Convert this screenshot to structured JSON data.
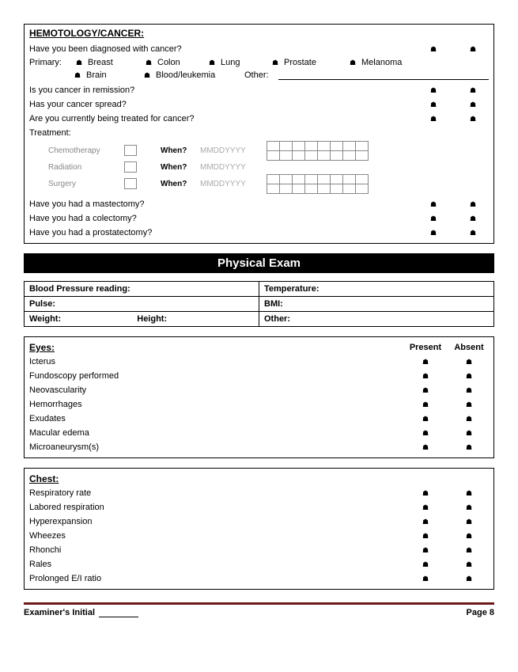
{
  "hemo": {
    "title": "HEMOTOLOGY/CANCER:",
    "q_diagnosed": "Have you been diagnosed with cancer?",
    "primary_label": "Primary:",
    "opts1": [
      "Breast",
      "Colon",
      "Lung",
      "Prostate",
      "Melanoma"
    ],
    "opts2": [
      "Brain",
      "Blood/leukemia"
    ],
    "other_label": "Other:",
    "q_remission": "Is you cancer in remission?",
    "q_spread": "Has your cancer spread?",
    "q_treated": "Are you currently being treated for cancer?",
    "treatment_label": "Treatment:",
    "treatments": [
      "Chemotherapy",
      "Radiation",
      "Surgery"
    ],
    "when_label": "When?",
    "when_placeholder": "MMDDYYYY",
    "q_mastectomy": "Have you had a mastectomy?",
    "q_colectomy": "Have you had a colectomy?",
    "q_prostatectomy": "Have you had a prostatectomy?"
  },
  "physical": {
    "header": "Physical Exam",
    "bp": "Blood Pressure reading:",
    "temp": "Temperature:",
    "pulse": "Pulse:",
    "bmi": "BMI:",
    "weight": "Weight:",
    "height": "Height:",
    "other": "Other:"
  },
  "eyes": {
    "title": "Eyes:",
    "col_present": "Present",
    "col_absent": "Absent",
    "items": [
      "Icterus",
      "Fundoscopy performed",
      "Neovascularity",
      "Hemorrhages",
      "Exudates",
      "Macular edema",
      "Microaneurysm(s)"
    ]
  },
  "chest": {
    "title": "Chest:",
    "items": [
      "Respiratory rate",
      "Labored respiration",
      "Hyperexpansion",
      "Wheezes",
      "Rhonchi",
      "Rales",
      "Prolonged E/I ratio"
    ]
  },
  "footer": {
    "initial": "Examiner's Initial",
    "page": "Page 8"
  }
}
